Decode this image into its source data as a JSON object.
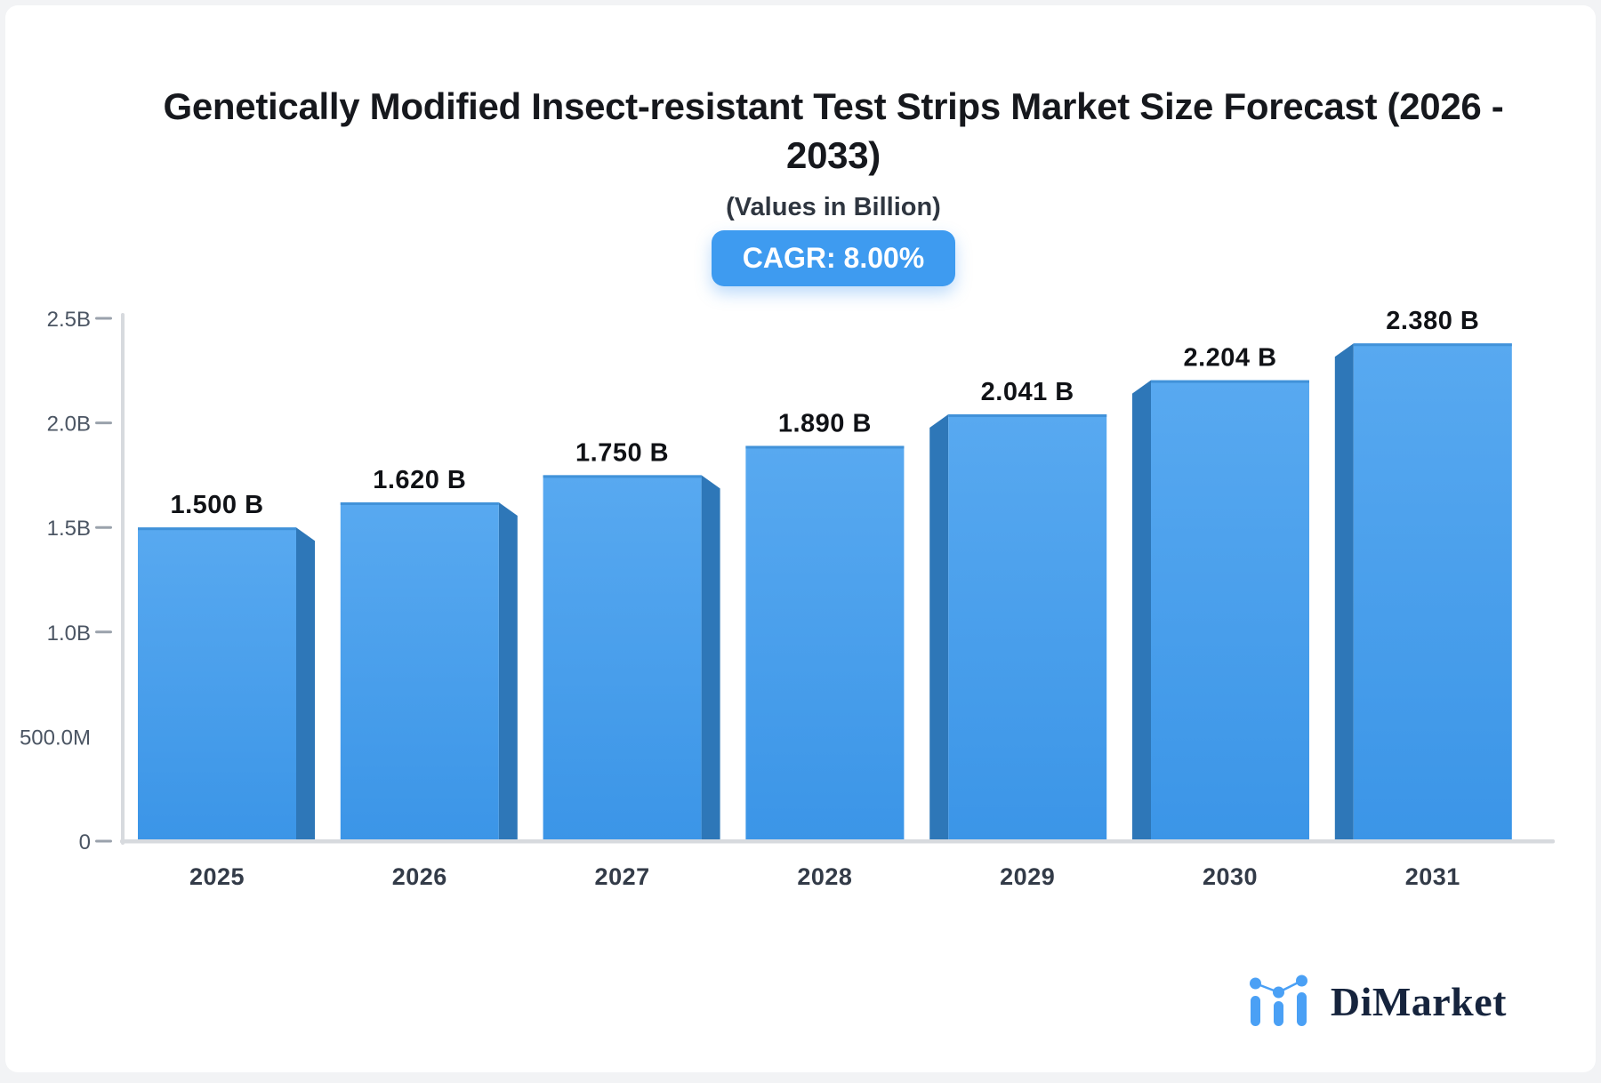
{
  "page": {
    "title_lines": [
      "Genetically Modified Insect-resistant Test Strips Market Size Forecast (2026 -",
      "2033)"
    ],
    "subtitle": "(Values in Billion)",
    "cagr_badge": "CAGR: 8.00%",
    "brand": {
      "name": "DiMarket"
    }
  },
  "chart_data": {
    "type": "bar",
    "title": "Genetically Modified Insect-resistant Test Strips Market Size Forecast (2026 - 2033)",
    "subtitle": "(Values in Billion)",
    "cagr_percent": 8.0,
    "categories": [
      "2025",
      "2026",
      "2027",
      "2028",
      "2029",
      "2030",
      "2031"
    ],
    "values": [
      1.5,
      1.62,
      1.75,
      1.89,
      2.041,
      2.204,
      2.38
    ],
    "bar_labels": [
      "1.500 B",
      "1.620 B",
      "1.750 B",
      "1.890 B",
      "2.041 B",
      "2.204 B",
      "2.380 B"
    ],
    "xlabel": "",
    "ylabel": "",
    "ylim": [
      0,
      2.5
    ],
    "yticks": [
      {
        "label": "2.5B",
        "value": 2.5,
        "dash": true
      },
      {
        "label": "2.0B",
        "value": 2.0,
        "dash": true
      },
      {
        "label": "1.5B",
        "value": 1.5,
        "dash": true
      },
      {
        "label": "1.0B",
        "value": 1.0,
        "dash": true
      },
      {
        "label": "500.0M",
        "value": 0.5,
        "dash": false
      },
      {
        "label": "0",
        "value": 0,
        "dash": true
      }
    ],
    "grid": false,
    "legend": false,
    "colors": {
      "bar_face_top": "#58a9f0",
      "bar_face_bottom": "#3b95e7",
      "bar_side": "#2e77b8",
      "bar_top_edge": "#3f8fd6",
      "axis_line": "#d7dade",
      "tick_dash": "#9aa2ac",
      "tick_label": "#4b5563",
      "category_label": "#333b48",
      "value_label": "#101216",
      "badge_bg": "#3e9bf0",
      "badge_text": "#ffffff",
      "brand_blue": "#4aa0f5",
      "brand_navy": "#16243d"
    }
  }
}
